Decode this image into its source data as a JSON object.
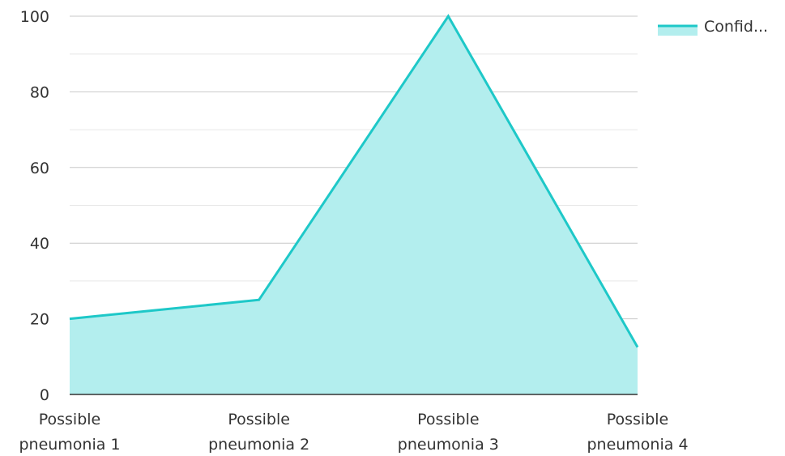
{
  "chart_data": {
    "type": "area",
    "categories": [
      [
        "Possible",
        "pneumonia 1"
      ],
      [
        "Possible",
        "pneumonia 2"
      ],
      [
        "Possible",
        "pneumonia 3"
      ],
      [
        "Possible",
        "pneumonia 4"
      ]
    ],
    "series": [
      {
        "name": "Confid...",
        "values": [
          20,
          25,
          100,
          12.5
        ]
      }
    ],
    "ylim": [
      0,
      100
    ],
    "yticks": [
      0,
      20,
      40,
      60,
      80,
      100
    ],
    "ytick_labels": [
      "0",
      "20",
      "40",
      "60",
      "80",
      "100"
    ],
    "minor_gridlines": [
      10,
      30,
      50,
      70,
      90
    ],
    "grid": true,
    "legend_position": "top-right",
    "colors": {
      "line": "#1ec8c8",
      "fill": "#b3eeee",
      "grid_major": "#c8c8c8",
      "grid_minor": "#e6e6e6",
      "axis": "#333333"
    }
  }
}
